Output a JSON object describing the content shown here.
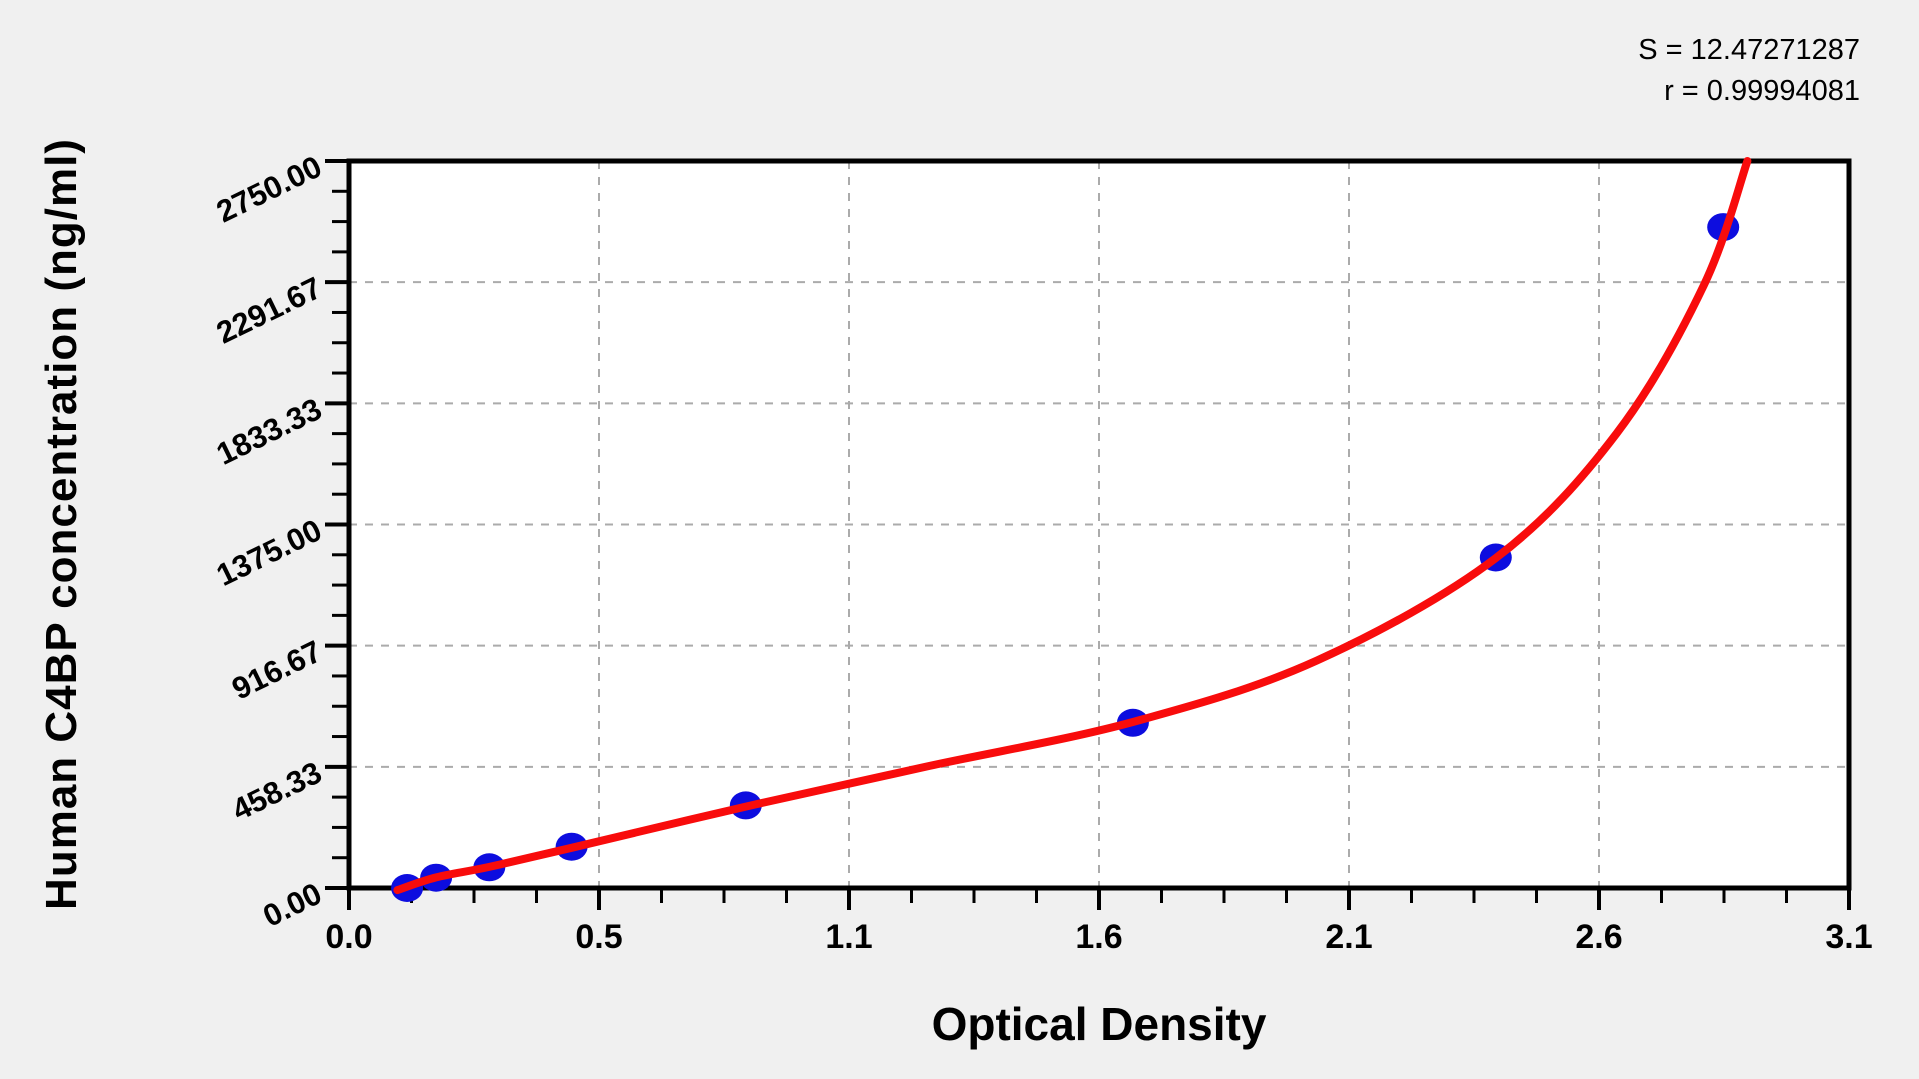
{
  "stats": {
    "s_line": "S = 12.47271287",
    "r_line": "r = 0.99994081"
  },
  "axes": {
    "x": {
      "title": "Optical Density",
      "tick_labels": [
        "0.0",
        "0.5",
        "1.1",
        "1.6",
        "2.1",
        "2.6",
        "3.1"
      ],
      "min": 0,
      "max": 3.1,
      "minor_divisions_per_major": 4
    },
    "y": {
      "title": "Human C4BP concentration (ng/ml)",
      "tick_labels": [
        "0.00",
        "458.33",
        "916.67",
        "1375.00",
        "1833.33",
        "2291.67",
        "2750.00"
      ],
      "min": 0,
      "max": 2750,
      "minor_divisions_per_major": 4
    }
  },
  "chart_data": {
    "type": "scatter",
    "title": "",
    "xlabel": "Optical Density",
    "ylabel": "Human C4BP concentration (ng/ml)",
    "xlim": [
      0,
      3.1
    ],
    "ylim": [
      0,
      2750
    ],
    "x_tick_labels": [
      "0.0",
      "0.5",
      "1.1",
      "1.6",
      "2.1",
      "2.6",
      "3.1"
    ],
    "y_tick_labels": [
      "0.00",
      "458.33",
      "916.67",
      "1375.00",
      "1833.33",
      "2291.67",
      "2750.00"
    ],
    "grid": "dashed gray lines at major ticks, plot area white, outer background light gray",
    "legend": "none",
    "annotations": [
      "S = 12.47271287",
      "r = 0.99994081"
    ],
    "series": [
      {
        "name": "standard-points",
        "type": "scatter",
        "marker": "filled-ellipse",
        "color": "#0d0ddf",
        "points": [
          [
            0.12,
            0
          ],
          [
            0.18,
            39.06
          ],
          [
            0.29,
            78.13
          ],
          [
            0.46,
            156.25
          ],
          [
            0.82,
            312.5
          ],
          [
            1.62,
            625
          ],
          [
            2.37,
            1250
          ],
          [
            2.84,
            2500
          ]
        ]
      },
      {
        "name": "fitted-standard-curve",
        "type": "line",
        "color": "#f80c0c",
        "points": [
          [
            0.1,
            -8
          ],
          [
            0.18,
            40
          ],
          [
            0.29,
            80
          ],
          [
            0.46,
            152
          ],
          [
            0.82,
            308
          ],
          [
            1.2,
            462
          ],
          [
            1.62,
            628
          ],
          [
            2.0,
            860
          ],
          [
            2.37,
            1248
          ],
          [
            2.62,
            1720
          ],
          [
            2.8,
            2280
          ],
          [
            2.89,
            2750
          ]
        ]
      }
    ]
  },
  "colors": {
    "background": "#f0f0f0",
    "plot_background": "#ffffff",
    "frame": "#000000",
    "gridline": "#ababab",
    "point_fill": "#0d0ddf",
    "curve": "#f80c0c",
    "text": "#000000"
  }
}
